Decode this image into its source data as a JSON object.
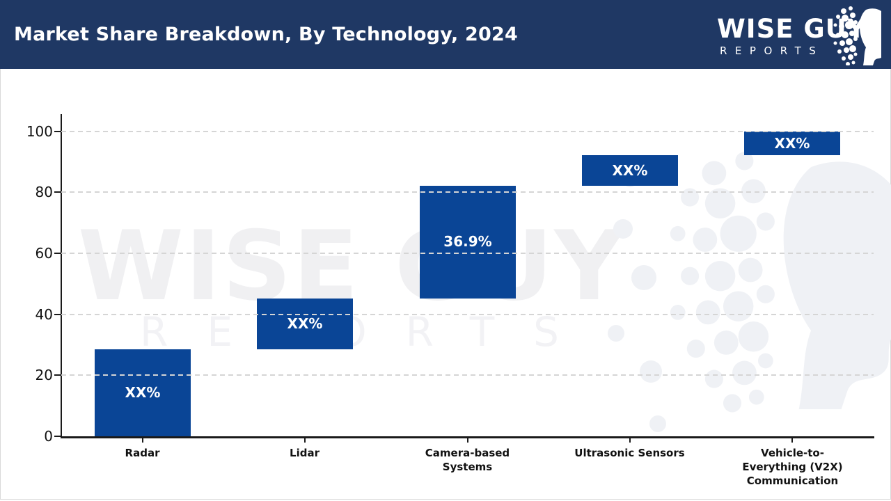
{
  "header": {
    "title": "Market Share Breakdown, By Technology, 2024",
    "logo": {
      "brand": "WISE GUY",
      "tagline": "REPORTS"
    }
  },
  "watermark": {
    "brand": "WISE GUY",
    "tagline": "REPORTS"
  },
  "colors": {
    "header_background": "#1f3864",
    "bar_blue": "#0a4596",
    "gridline_gray": "#d5d5d5",
    "watermark_gray": "#f0f1f4"
  },
  "chart_data": {
    "type": "bar",
    "subtype": "waterfall",
    "title": "Market Share Breakdown, By Technology, 2024",
    "xlabel": "",
    "ylabel": "",
    "ylim": [
      0,
      105.6
    ],
    "yticks": [
      0,
      20,
      40,
      60,
      80,
      100
    ],
    "grid": "horizontal-dashed",
    "legend": "none",
    "bar_color": "#0a4596",
    "categories": [
      "Radar",
      "Lidar",
      "Camera-based\nSystems",
      "Ultrasonic Sensors",
      "Vehicle-to-\nEverything (V2X)\nCommunication"
    ],
    "segments": [
      {
        "category": "Radar",
        "start": 0,
        "end": 28.6,
        "label": "XX%"
      },
      {
        "category": "Lidar",
        "start": 28.6,
        "end": 45.2,
        "label": "XX%"
      },
      {
        "category": "Camera-based Systems",
        "start": 45.2,
        "end": 82.1,
        "label": "36.9%",
        "value": 36.9
      },
      {
        "category": "Ultrasonic Sensors",
        "start": 82.1,
        "end": 92.2,
        "label": "XX%"
      },
      {
        "category": "Vehicle-to-Everything (V2X) Communication",
        "start": 92.2,
        "end": 100,
        "label": "XX%"
      }
    ]
  }
}
